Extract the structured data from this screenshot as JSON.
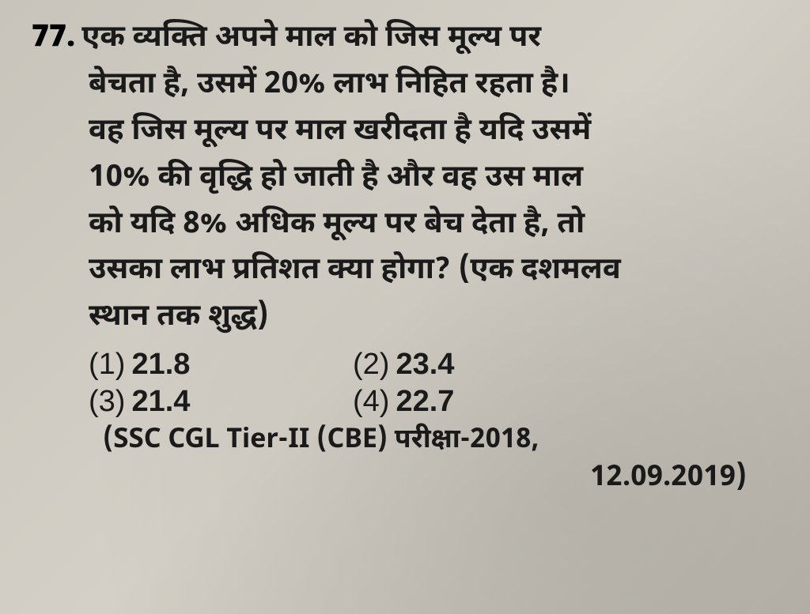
{
  "question": {
    "number": "77.",
    "line1_after_number": "एक व्यक्ति अपने माल को जिस मूल्य पर",
    "line2": "बेचता है, उसमें 20% लाभ निहित रहता है।",
    "line3": "वह जिस मूल्य पर माल खरीदता है यदि उसमें",
    "line4": "10% की वृद्धि हो जाती है और वह उस माल",
    "line5": "को यदि 8% अधिक मूल्य पर बेच देता है, तो",
    "line6": "उसका लाभ प्रतिशत क्या होगा? (एक दशमलव",
    "line7": "स्थान तक शुद्ध)"
  },
  "options": {
    "opt1_label": "(1)",
    "opt1_value": "21.8",
    "opt2_label": "(2)",
    "opt2_value": "23.4",
    "opt3_label": "(3)",
    "opt3_value": "21.4",
    "opt4_label": "(4)",
    "opt4_value": "22.7"
  },
  "source": {
    "text": "(SSC CGL Tier-II (CBE) परीक्षा-2018,",
    "date": "12.09.2019)"
  },
  "style": {
    "background_start": "#c8c4bb",
    "background_end": "#b8b4ab",
    "text_color": "#1a1a1a",
    "question_fontsize": 38,
    "option_fontsize": 38,
    "source_fontsize": 34,
    "font_weight_question": 700,
    "font_weight_number": 900
  }
}
